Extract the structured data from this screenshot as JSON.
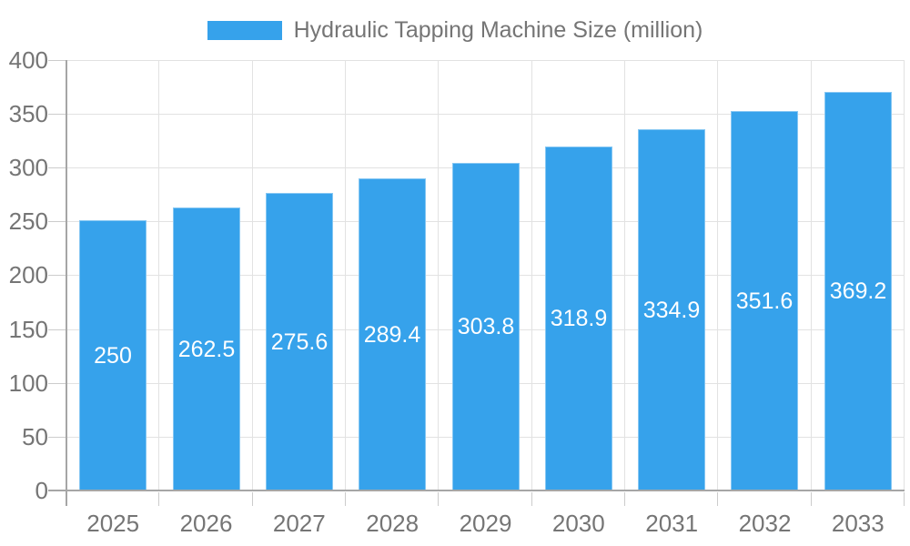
{
  "legend": {
    "label": "Hydraulic Tapping Machine Size (million)"
  },
  "chart_data": {
    "type": "bar",
    "title": "Hydraulic Tapping Machine Size (million)",
    "categories": [
      "2025",
      "2026",
      "2027",
      "2028",
      "2029",
      "2030",
      "2031",
      "2032",
      "2033"
    ],
    "values": [
      250,
      262.5,
      275.6,
      289.4,
      303.8,
      318.9,
      334.9,
      351.6,
      369.2
    ],
    "value_labels": [
      "250",
      "262.5",
      "275.6",
      "289.4",
      "303.8",
      "318.9",
      "334.9",
      "351.6",
      "369.2"
    ],
    "xlabel": "",
    "ylabel": "",
    "ylim": [
      0,
      400
    ],
    "ytick_step": 50,
    "ytick_labels": [
      "0",
      "50",
      "100",
      "150",
      "200",
      "250",
      "300",
      "350",
      "400"
    ],
    "grid": true,
    "legend_position": "top",
    "colors": {
      "bar": "#36a2eb",
      "bar_label_text": "#ffffff",
      "gridline": "#e2e2e2",
      "tick": "#cccccc",
      "axis": "#a6a6a6",
      "text": "#757575",
      "background": "#ffffff"
    }
  }
}
